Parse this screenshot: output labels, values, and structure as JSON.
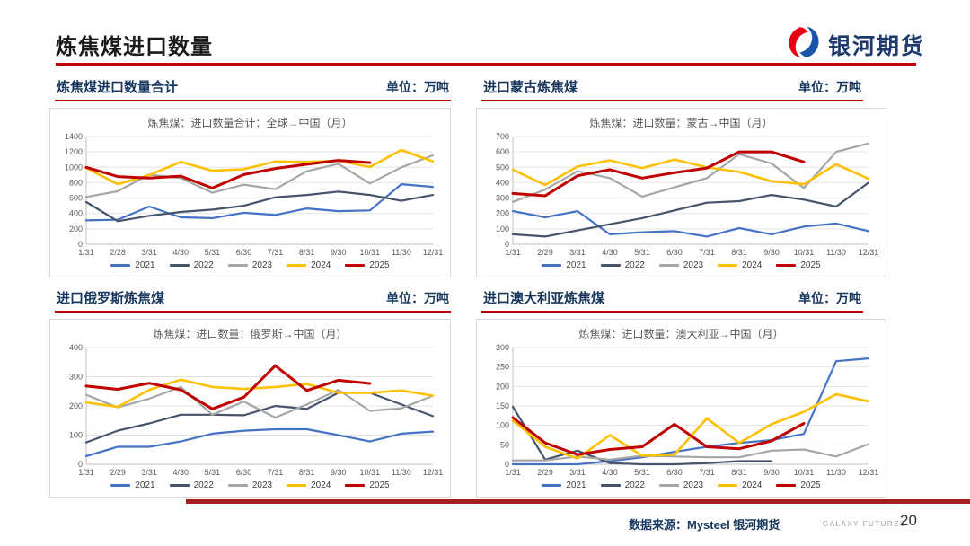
{
  "page": {
    "title": "炼焦煤进口数量",
    "logo_text": "银河期货",
    "footer": {
      "source": "数据来源：Mysteel 银河期货",
      "brand": "GALAXY FUTURES",
      "page_number": "20"
    }
  },
  "colors": {
    "accent_red": "#C00000",
    "heading_navy": "#17375E",
    "grid": "#E3E3E3",
    "series": {
      "2021": "#4472C4",
      "2022": "#44546A",
      "2023": "#A6A6A6",
      "2024": "#FFC000",
      "2025": "#C00000"
    }
  },
  "panels": [
    {
      "header": "炼焦煤进口数量合计",
      "unit": "单位：万吨"
    },
    {
      "header": "进口蒙古炼焦煤",
      "unit": "单位：万吨"
    },
    {
      "header": "进口俄罗斯炼焦煤",
      "unit": "单位：万吨"
    },
    {
      "header": "进口澳大利亚炼焦煤",
      "unit": "单位：万吨"
    }
  ],
  "chart_data": [
    {
      "type": "line",
      "title": "炼焦煤：进口数量合计：全球→中国（月）",
      "categories": [
        "1/31",
        "2/28",
        "3/31",
        "4/30",
        "5/31",
        "6/30",
        "7/31",
        "8/31",
        "9/30",
        "10/31",
        "11/30",
        "12/31"
      ],
      "ylim": [
        0,
        1400
      ],
      "ytick_step": 200,
      "grid": true,
      "legend_position": "bottom",
      "series": [
        {
          "name": "2021",
          "values": [
            310,
            320,
            490,
            350,
            340,
            410,
            380,
            465,
            430,
            440,
            780,
            745
          ]
        },
        {
          "name": "2022",
          "values": [
            550,
            300,
            370,
            420,
            450,
            500,
            610,
            640,
            685,
            640,
            565,
            640
          ]
        },
        {
          "name": "2023",
          "values": [
            615,
            690,
            905,
            860,
            670,
            775,
            715,
            950,
            1045,
            790,
            1000,
            1155
          ]
        },
        {
          "name": "2024",
          "values": [
            990,
            780,
            900,
            1070,
            955,
            975,
            1075,
            1070,
            1085,
            1005,
            1225,
            1075
          ]
        },
        {
          "name": "2025",
          "values": [
            1000,
            880,
            860,
            885,
            730,
            905,
            985,
            1040,
            1090,
            1060
          ]
        }
      ]
    },
    {
      "type": "line",
      "title": "炼焦煤：进口数量：蒙古→中国（月）",
      "categories": [
        "1/31",
        "2/29",
        "3/31",
        "4/30",
        "5/31",
        "6/30",
        "7/31",
        "8/31",
        "9/30",
        "10/31",
        "11/30",
        "12/31"
      ],
      "ylim": [
        0,
        700
      ],
      "ytick_step": 100,
      "grid": true,
      "legend_position": "bottom",
      "series": [
        {
          "name": "2021",
          "values": [
            215,
            175,
            215,
            65,
            78,
            85,
            50,
            105,
            65,
            115,
            135,
            85
          ]
        },
        {
          "name": "2022",
          "values": [
            65,
            50,
            90,
            130,
            170,
            220,
            270,
            280,
            320,
            290,
            245,
            400
          ]
        },
        {
          "name": "2023",
          "values": [
            275,
            355,
            475,
            430,
            310,
            370,
            430,
            585,
            525,
            365,
            600,
            655
          ]
        },
        {
          "name": "2024",
          "values": [
            485,
            385,
            505,
            545,
            495,
            550,
            500,
            470,
            410,
            390,
            520,
            425
          ]
        },
        {
          "name": "2025",
          "values": [
            330,
            315,
            445,
            485,
            430,
            465,
            495,
            600,
            600,
            535
          ]
        }
      ]
    },
    {
      "type": "line",
      "title": "炼焦煤：进口数量：俄罗斯→中国（月）",
      "categories": [
        "1/31",
        "2/29",
        "3/31",
        "4/30",
        "5/31",
        "6/30",
        "7/31",
        "8/31",
        "9/30",
        "10/31",
        "11/30",
        "12/31"
      ],
      "ylim": [
        0,
        400
      ],
      "ytick_step": 100,
      "grid": true,
      "legend_position": "bottom",
      "series": [
        {
          "name": "2021",
          "values": [
            28,
            60,
            60,
            78,
            105,
            115,
            120,
            120,
            100,
            78,
            105,
            112
          ]
        },
        {
          "name": "2022",
          "values": [
            75,
            115,
            140,
            170,
            170,
            168,
            200,
            190,
            245,
            245,
            205,
            165
          ]
        },
        {
          "name": "2023",
          "values": [
            238,
            195,
            225,
            265,
            170,
            215,
            160,
            205,
            255,
            183,
            192,
            235
          ]
        },
        {
          "name": "2024",
          "values": [
            212,
            197,
            255,
            290,
            265,
            258,
            265,
            275,
            245,
            245,
            253,
            235
          ]
        },
        {
          "name": "2025",
          "values": [
            268,
            257,
            278,
            255,
            190,
            230,
            338,
            253,
            288,
            277
          ]
        }
      ]
    },
    {
      "type": "line",
      "title": "炼焦煤：进口数量：澳大利亚→中国（月）",
      "categories": [
        "1/31",
        "2/29",
        "3/31",
        "4/30",
        "5/31",
        "6/30",
        "7/31",
        "8/31",
        "9/30",
        "10/31",
        "11/30",
        "12/31"
      ],
      "ylim": [
        0,
        300
      ],
      "ytick_step": 50,
      "grid": true,
      "legend_position": "bottom",
      "series": [
        {
          "name": "2021",
          "values": [
            0,
            0,
            0,
            8,
            18,
            32,
            45,
            55,
            62,
            78,
            265,
            272
          ]
        },
        {
          "name": "2022",
          "values": [
            148,
            12,
            35,
            3,
            0,
            0,
            3,
            8,
            8
          ]
        },
        {
          "name": "2023",
          "values": [
            10,
            10,
            20,
            12,
            22,
            20,
            18,
            18,
            35,
            38,
            20,
            52
          ]
        },
        {
          "name": "2024",
          "values": [
            112,
            45,
            15,
            75,
            22,
            25,
            118,
            55,
            103,
            135,
            180,
            162
          ]
        },
        {
          "name": "2025",
          "values": [
            120,
            55,
            25,
            38,
            45,
            103,
            45,
            40,
            60,
            105
          ]
        }
      ]
    }
  ]
}
